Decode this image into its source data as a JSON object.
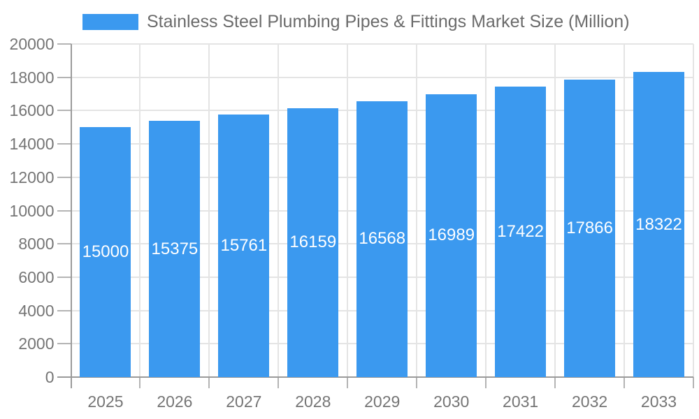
{
  "chart_data": {
    "type": "bar",
    "title": "Stainless Steel Plumbing Pipes & Fittings Market Size (Million)",
    "categories": [
      "2025",
      "2026",
      "2027",
      "2028",
      "2029",
      "2030",
      "2031",
      "2032",
      "2033"
    ],
    "values": [
      15000,
      15375,
      15761,
      16159,
      16568,
      16989,
      17422,
      17866,
      18322
    ],
    "xlabel": "",
    "ylabel": "",
    "ylim": [
      0,
      20000
    ],
    "ytick_step": 2000,
    "yticks": [
      0,
      2000,
      4000,
      6000,
      8000,
      10000,
      12000,
      14000,
      16000,
      18000,
      20000
    ],
    "grid": true,
    "legend_position": "top",
    "value_label_position": "inside-center",
    "bar_color": "#3b99ef",
    "grid_color": "#e4e4e4",
    "axis_color": "#9a9a9a",
    "tick_color": "#b4b4b4",
    "text_color": "#757575",
    "value_label_color": "#ffffff"
  }
}
